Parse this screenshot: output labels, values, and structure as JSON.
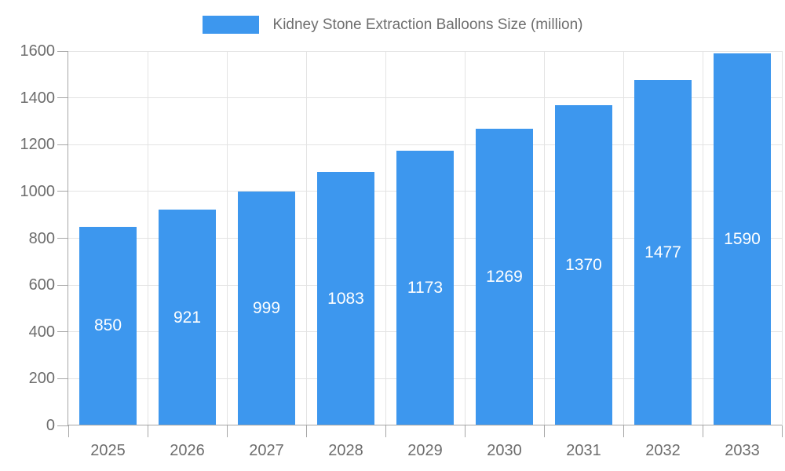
{
  "legend": {
    "label": "Kidney Stone Extraction Balloons Size (million)"
  },
  "colors": {
    "bar": "#3d97ee",
    "grid": "#e3e3e3",
    "axis": "#a6a6a6",
    "axis_text": "#6d6d6d",
    "legend_text": "#6e6e6e",
    "value_label_text": "#ffffff",
    "background": "#ffffff"
  },
  "chart_data": {
    "type": "bar",
    "title": "Kidney Stone Extraction Balloons Size (million)",
    "categories": [
      "2025",
      "2026",
      "2027",
      "2028",
      "2029",
      "2030",
      "2031",
      "2032",
      "2033"
    ],
    "values": [
      850,
      921,
      999,
      1083,
      1173,
      1269,
      1370,
      1477,
      1590
    ],
    "xlabel": "",
    "ylabel": "",
    "ylim": [
      0,
      1600
    ],
    "ytick_step": 200,
    "ytick_labels": [
      "0",
      "200",
      "400",
      "600",
      "800",
      "1000",
      "1200",
      "1400",
      "1600"
    ],
    "grid": true,
    "legend_position": "top-center",
    "value_labels": "inside-vertical-center"
  }
}
